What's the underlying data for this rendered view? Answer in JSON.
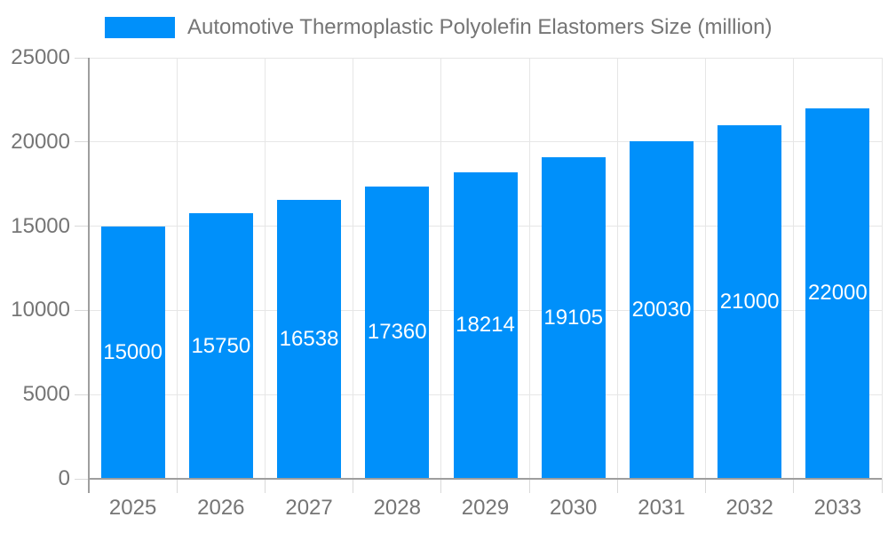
{
  "chart_data": {
    "type": "bar",
    "title": "Automotive Thermoplastic Polyolefin Elastomers Size (million)",
    "categories": [
      "2025",
      "2026",
      "2027",
      "2028",
      "2029",
      "2030",
      "2031",
      "2032",
      "2033"
    ],
    "values": [
      15000,
      15750,
      16538,
      17360,
      18214,
      19105,
      20030,
      21000,
      22000
    ],
    "xlabel": "",
    "ylabel": "",
    "ylim": [
      0,
      25000
    ],
    "yticks": [
      0,
      5000,
      10000,
      15000,
      20000,
      25000
    ],
    "grid": "horizontal and vertical gridlines on",
    "legend_position": "top-left",
    "bar_labels": "values shown in white, centered inside each bar",
    "colors": {
      "bar": "#0090FA",
      "bar_label_text": "#ffffff",
      "axis_text": "#757575",
      "axis_line": "#9e9e9e",
      "gridline": "#e6e6e6",
      "tick": "#d9d9d9",
      "background": "#ffffff"
    }
  }
}
